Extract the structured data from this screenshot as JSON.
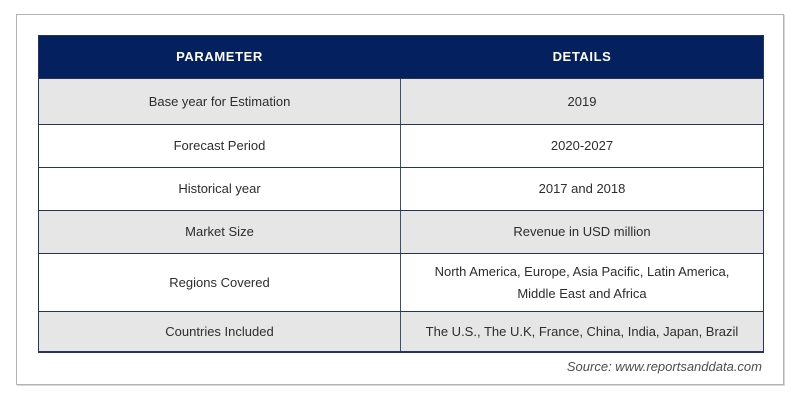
{
  "chart_data": {
    "type": "table",
    "title": "",
    "columns": [
      "PARAMETER",
      "DETAILS"
    ],
    "rows": [
      [
        "Base year for Estimation",
        "2019"
      ],
      [
        "Forecast Period",
        "2020-2027"
      ],
      [
        "Historical year",
        "2017 and 2018"
      ],
      [
        "Market Size",
        "Revenue in USD million"
      ],
      [
        "Regions Covered",
        "North America, Europe, Asia Pacific, Latin America, Middle East and Africa"
      ],
      [
        "Countries Included",
        "The U.S., The  U.K, France, China, India, Japan, Brazil"
      ]
    ],
    "source": "Source: www.reportsanddata.com"
  },
  "table": {
    "headers": {
      "parameter": "PARAMETER",
      "details": "DETAILS"
    },
    "rows": [
      {
        "parameter": "Base year for Estimation",
        "details": "2019"
      },
      {
        "parameter": "Forecast Period",
        "details": "2020-2027"
      },
      {
        "parameter": "Historical year",
        "details": "2017 and 2018"
      },
      {
        "parameter": "Market Size",
        "details": "Revenue in USD million"
      },
      {
        "parameter": "Regions Covered",
        "details": "North America, Europe, Asia Pacific, Latin America, Middle East and Africa"
      },
      {
        "parameter": "Countries Included",
        "details": "The U.S., The  U.K, France, China, India, Japan, Brazil"
      }
    ]
  },
  "source": {
    "label": "Source: www.reportsanddata.com"
  },
  "colors": {
    "header_bg": "#04205f",
    "header_text": "#ffffff",
    "shaded_row_bg": "#e6e6e6",
    "plain_row_bg": "#ffffff",
    "table_border": "#26355e",
    "body_text": "#2d2d2d",
    "source_text": "#4e4e4e",
    "panel_border": "#b3b3b3"
  }
}
